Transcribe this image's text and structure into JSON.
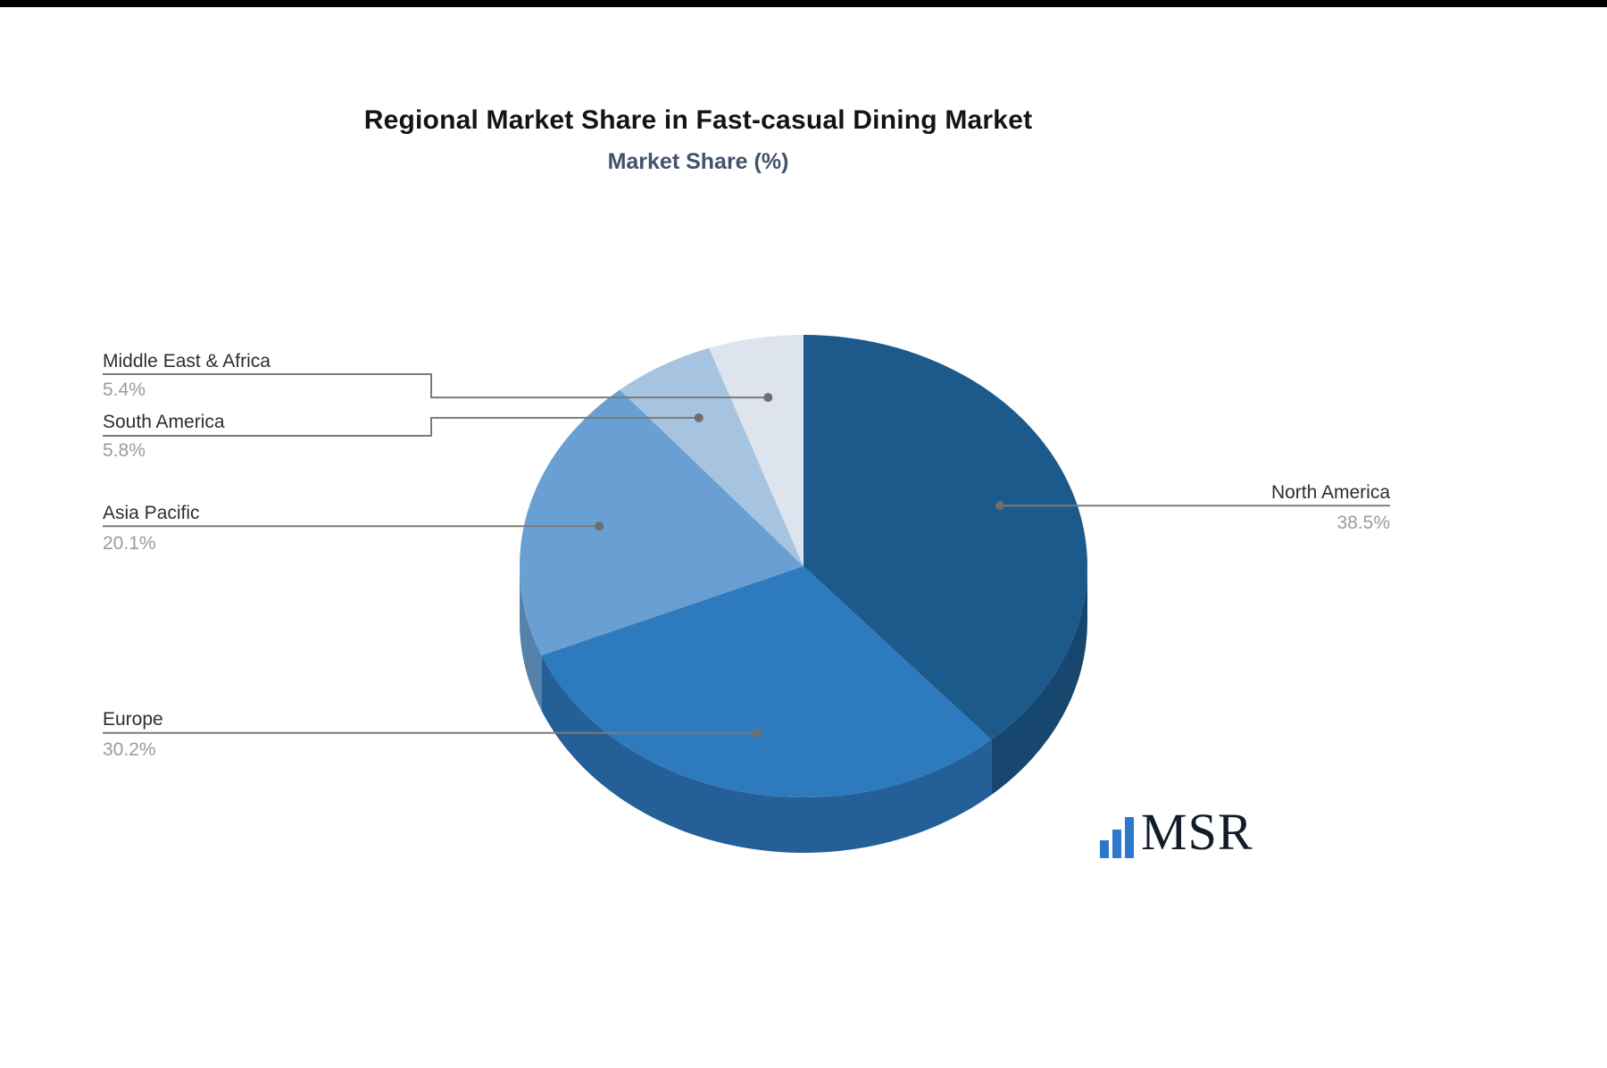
{
  "title": "Regional Market Share in Fast-casual Dining Market",
  "subtitle": "Market Share (%)",
  "chart_data": {
    "type": "pie",
    "style": "3d-pie",
    "unit": "%",
    "direction": "clockwise",
    "start_angle_deg": 0,
    "legend": "none",
    "label_style": "callout lines with name above line and percent below",
    "series": [
      {
        "name": "North America",
        "value": 38.5,
        "pct_label": "38.5%"
      },
      {
        "name": "Europe",
        "value": 30.2,
        "pct_label": "30.2%"
      },
      {
        "name": "Asia Pacific",
        "value": 20.1,
        "pct_label": "20.1%"
      },
      {
        "name": "South America",
        "value": 5.8,
        "pct_label": "5.8%"
      },
      {
        "name": "Middle East & Africa",
        "value": 5.4,
        "pct_label": "5.4%"
      }
    ],
    "colors": {
      "slices": [
        "#1d5a8c",
        "#2e7abf",
        "#699fd2",
        "#a6c3e0",
        "#dde4ee"
      ],
      "slice_sides": [
        "#17476f",
        "#255f97",
        "#5582ab",
        "#86a5c4",
        "#b8c4d6"
      ],
      "connector": "#7a7a7a",
      "dot": "#6e6e6e",
      "label_text": "#2e2e2e",
      "percent_text": "#9b9b9b",
      "title_text": "#141414",
      "subtitle_text": "#42526b"
    }
  },
  "logo": {
    "text": "MSR",
    "icon": "bar-chart-icon",
    "bar_color": "#2e78cc",
    "text_color": "#131c2b"
  }
}
